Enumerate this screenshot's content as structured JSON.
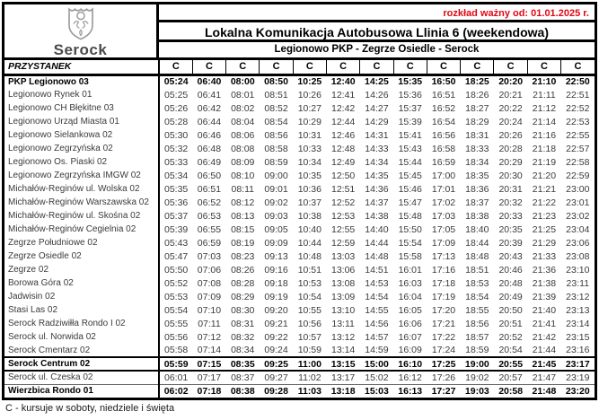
{
  "header": {
    "logo_text": "Serock",
    "valid_from": "rozkład ważny od: 01.01.2025 r.",
    "title": "Lokalna Komunikacja Autobusowa Llinia 6 (weekendowa)",
    "route": "Legionowo PKP - Zegrze Osiedle - Serock"
  },
  "colors": {
    "accent_red": "#e30613",
    "logo_gray": "#9a9a9a"
  },
  "table": {
    "stop_header": "PRZYSTANEK",
    "columns": [
      "C",
      "C",
      "C",
      "C",
      "C",
      "C",
      "C",
      "C",
      "C",
      "C",
      "C",
      "C",
      "C"
    ],
    "rows": [
      {
        "stop": "PKP Legionowo 03",
        "style": "bold",
        "times": [
          "05:24",
          "06:40",
          "08:00",
          "08:50",
          "10:25",
          "12:40",
          "14:25",
          "15:35",
          "16:50",
          "18:25",
          "20:20",
          "21:10",
          "22:50"
        ]
      },
      {
        "stop": "Legionowo Rynek 01",
        "style": "normal",
        "times": [
          "05:25",
          "06:41",
          "08:01",
          "08:51",
          "10:26",
          "12:41",
          "14:26",
          "15:36",
          "16:51",
          "18:26",
          "20:21",
          "21:11",
          "22:51"
        ]
      },
      {
        "stop": "Legionowo CH Błękitne 03",
        "style": "normal",
        "times": [
          "05:26",
          "06:42",
          "08:02",
          "08:52",
          "10:27",
          "12:42",
          "14:27",
          "15:37",
          "16:52",
          "18:27",
          "20:22",
          "21:12",
          "22:52"
        ]
      },
      {
        "stop": "Legionowo Urząd Miasta 01",
        "style": "normal",
        "times": [
          "05:28",
          "06:44",
          "08:04",
          "08:54",
          "10:29",
          "12:44",
          "14:29",
          "15:39",
          "16:54",
          "18:29",
          "20:24",
          "21:14",
          "22:53"
        ]
      },
      {
        "stop": "Legionowo Sielankowa 02",
        "style": "normal",
        "times": [
          "05:30",
          "06:46",
          "08:06",
          "08:56",
          "10:31",
          "12:46",
          "14:31",
          "15:41",
          "16:56",
          "18:31",
          "20:26",
          "21:16",
          "22:55"
        ]
      },
      {
        "stop": "Legionowo Zegrzyńska 02",
        "style": "normal",
        "times": [
          "05:32",
          "06:48",
          "08:08",
          "08:58",
          "10:33",
          "12:48",
          "14:33",
          "15:43",
          "16:58",
          "18:33",
          "20:28",
          "21:18",
          "22:57"
        ]
      },
      {
        "stop": "Legionowo Os. Piaski 02",
        "style": "normal",
        "times": [
          "05:33",
          "06:49",
          "08:09",
          "08:59",
          "10:34",
          "12:49",
          "14:34",
          "15:44",
          "16:59",
          "18:34",
          "20:29",
          "21:19",
          "22:58"
        ]
      },
      {
        "stop": "Legionowo Zegrzyńska IMGW 02",
        "style": "normal",
        "times": [
          "05:34",
          "06:50",
          "08:10",
          "09:00",
          "10:35",
          "12:50",
          "14:35",
          "15:45",
          "17:00",
          "18:35",
          "20:30",
          "21:20",
          "22:59"
        ]
      },
      {
        "stop": "Michałów-Reginów ul. Wolska 02",
        "style": "normal",
        "times": [
          "05:35",
          "06:51",
          "08:11",
          "09:01",
          "10:36",
          "12:51",
          "14:36",
          "15:46",
          "17:01",
          "18:36",
          "20:31",
          "21:21",
          "23:00"
        ]
      },
      {
        "stop": "Michałów-Reginów Warszawska 02",
        "style": "normal",
        "times": [
          "05:36",
          "06:52",
          "08:12",
          "09:02",
          "10:37",
          "12:52",
          "14:37",
          "15:47",
          "17:02",
          "18:37",
          "20:32",
          "21:22",
          "23:01"
        ]
      },
      {
        "stop": "Michałów-Reginów ul. Skośna 02",
        "style": "normal",
        "times": [
          "05:37",
          "06:53",
          "08:13",
          "09:03",
          "10:38",
          "12:53",
          "14:38",
          "15:48",
          "17:03",
          "18:38",
          "20:33",
          "21:23",
          "23:02"
        ]
      },
      {
        "stop": "Michałów-Reginów Cegielnia 02",
        "style": "normal",
        "times": [
          "05:39",
          "06:55",
          "08:15",
          "09:05",
          "10:40",
          "12:55",
          "14:40",
          "15:50",
          "17:05",
          "18:40",
          "20:35",
          "21:25",
          "23:04"
        ]
      },
      {
        "stop": "Zegrze Południowe 02",
        "style": "normal",
        "times": [
          "05:43",
          "06:59",
          "08:19",
          "09:09",
          "10:44",
          "12:59",
          "14:44",
          "15:54",
          "17:09",
          "18:44",
          "20:39",
          "21:29",
          "23:06"
        ]
      },
      {
        "stop": "Zegrze Osiedle 02",
        "style": "normal",
        "times": [
          "05:47",
          "07:03",
          "08:23",
          "09:13",
          "10:48",
          "13:03",
          "14:48",
          "15:58",
          "17:13",
          "18:48",
          "20:43",
          "21:33",
          "23:08"
        ]
      },
      {
        "stop": "Zegrze 02",
        "style": "normal",
        "times": [
          "05:50",
          "07:06",
          "08:26",
          "09:16",
          "10:51",
          "13:06",
          "14:51",
          "16:01",
          "17:16",
          "18:51",
          "20:46",
          "21:36",
          "23:10"
        ]
      },
      {
        "stop": "Borowa Góra 02",
        "style": "normal",
        "times": [
          "05:52",
          "07:08",
          "08:28",
          "09:18",
          "10:53",
          "13:08",
          "14:53",
          "16:03",
          "17:18",
          "18:53",
          "20:48",
          "21:38",
          "23:11"
        ]
      },
      {
        "stop": "Jadwisin 02",
        "style": "normal",
        "times": [
          "05:53",
          "07:09",
          "08:29",
          "09:19",
          "10:54",
          "13:09",
          "14:54",
          "16:04",
          "17:19",
          "18:54",
          "20:49",
          "21:39",
          "23:12"
        ]
      },
      {
        "stop": "Stasi Las 02",
        "style": "normal",
        "times": [
          "05:54",
          "07:10",
          "08:30",
          "09:20",
          "10:55",
          "13:10",
          "14:55",
          "16:05",
          "17:20",
          "18:55",
          "20:50",
          "21:40",
          "23:13"
        ]
      },
      {
        "stop": "Serock Radziwiłła Rondo I 02",
        "style": "normal",
        "times": [
          "05:55",
          "07:11",
          "08:31",
          "09:21",
          "10:56",
          "13:11",
          "14:56",
          "16:06",
          "17:21",
          "18:56",
          "20:51",
          "21:41",
          "23:14"
        ]
      },
      {
        "stop": "Serock ul. Norwida 02",
        "style": "normal",
        "times": [
          "05:56",
          "07:12",
          "08:32",
          "09:22",
          "10:57",
          "13:12",
          "14:57",
          "16:07",
          "17:22",
          "18:57",
          "20:52",
          "21:42",
          "23:15"
        ]
      },
      {
        "stop": "Serock Cmentarz 02",
        "style": "normal",
        "times": [
          "05:58",
          "07:14",
          "08:34",
          "09:24",
          "10:59",
          "13:14",
          "14:59",
          "16:09",
          "17:24",
          "18:59",
          "20:54",
          "21:44",
          "23:16"
        ]
      },
      {
        "stop": "Serock Centrum 02",
        "style": "bold major",
        "times": [
          "05:59",
          "07:15",
          "08:35",
          "09:25",
          "11:00",
          "13:15",
          "15:00",
          "16:10",
          "17:25",
          "19:00",
          "20:55",
          "21:45",
          "23:17"
        ]
      },
      {
        "stop": "Serock ul. Czeska 02",
        "style": "normal",
        "times": [
          "06:01",
          "07:17",
          "08:37",
          "09:27",
          "11:02",
          "13:17",
          "15:02",
          "16:12",
          "17:26",
          "19:02",
          "20:57",
          "21:47",
          "23:19"
        ]
      },
      {
        "stop": "Wierzbica Rondo 01",
        "style": "bold thin-top",
        "times": [
          "06:02",
          "07:18",
          "08:38",
          "09:28",
          "11:03",
          "13:18",
          "15:03",
          "16:13",
          "17:27",
          "19:03",
          "20:58",
          "21:48",
          "23:20"
        ]
      }
    ]
  },
  "footnote": "C - kursuje w soboty, niedziele i święta"
}
